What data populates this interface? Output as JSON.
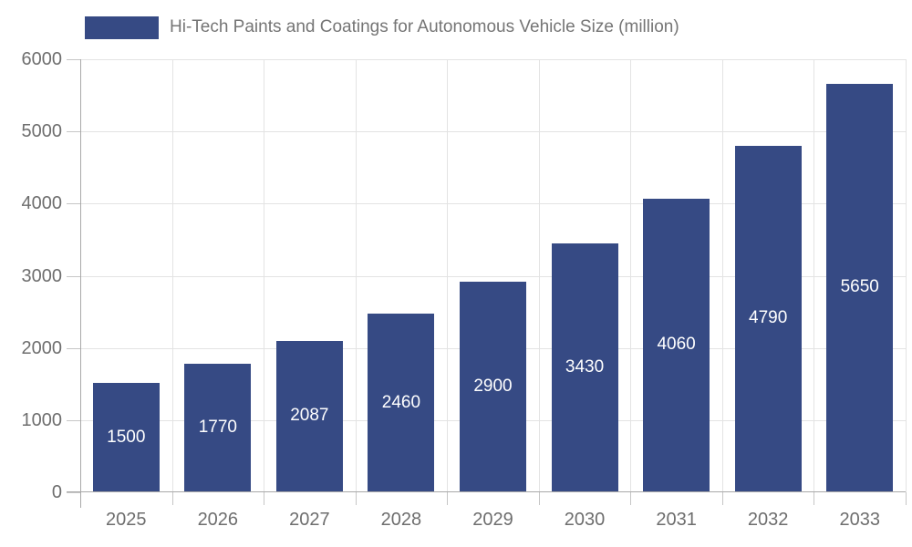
{
  "chart_data": {
    "type": "bar",
    "title": "Hi-Tech Paints and Coatings for Autonomous Vehicle Size (million)",
    "categories": [
      "2025",
      "2026",
      "2027",
      "2028",
      "2029",
      "2030",
      "2031",
      "2032",
      "2033"
    ],
    "values": [
      1500,
      1770,
      2087,
      2460,
      2900,
      3430,
      4060,
      4790,
      5650
    ],
    "xlabel": "",
    "ylabel": "",
    "ylim": [
      0,
      6000
    ],
    "yticks": [
      0,
      1000,
      2000,
      3000,
      4000,
      5000,
      6000
    ],
    "grid": true,
    "legend_position": "top-left",
    "value_labels": "centered-inside-bars"
  },
  "colors": {
    "bar": "#364a84",
    "grid": "#e3e3e3",
    "axis": "#a9a9a9",
    "tick": "#c6c6c6",
    "tick_label": "#6e6e6e",
    "title": "#757575",
    "value_label": "#ffffff",
    "background": "#ffffff"
  }
}
